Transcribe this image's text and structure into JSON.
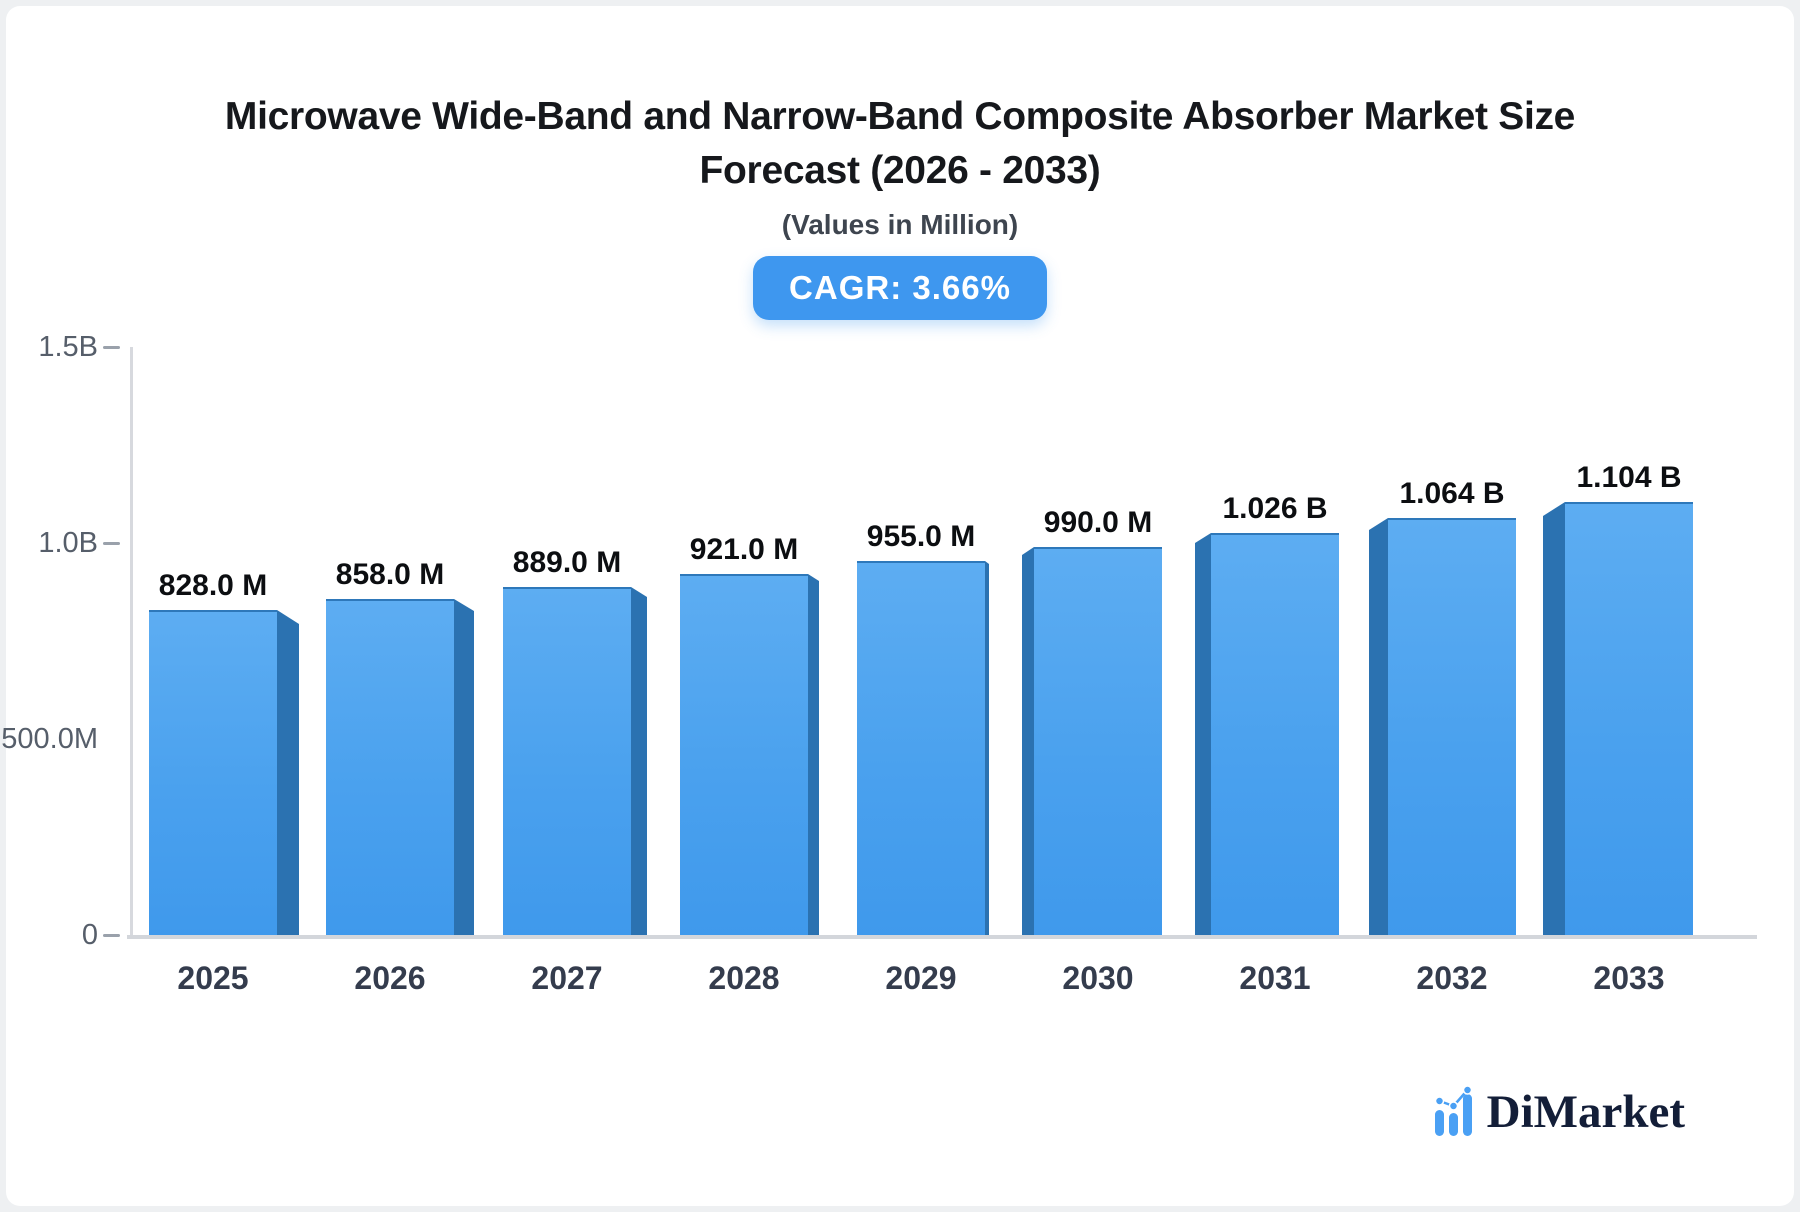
{
  "header": {
    "title_line1": "Microwave Wide-Band and Narrow-Band Composite Absorber Market Size",
    "title_line2": "Forecast (2026 - 2033)",
    "subtitle": "(Values in Million)",
    "cagr_label": "CAGR: 3.66%"
  },
  "chart_data": {
    "type": "bar",
    "title": "Microwave Wide-Band and Narrow-Band Composite Absorber Market Size Forecast (2026 - 2033)",
    "subtitle": "(Values in Million)",
    "cagr_percent": 3.66,
    "categories": [
      "2025",
      "2026",
      "2027",
      "2028",
      "2029",
      "2030",
      "2031",
      "2032",
      "2033"
    ],
    "values_millions": [
      828,
      858,
      889,
      921,
      955,
      990,
      1026,
      1064,
      1104
    ],
    "value_labels": [
      "828.0 M",
      "858.0 M",
      "889.0 M",
      "921.0 M",
      "955.0 M",
      "990.0 M",
      "1.026 B",
      "1.064 B",
      "1.104 B"
    ],
    "xlabel": "",
    "ylabel": "",
    "ylim_millions": [
      0,
      1500
    ],
    "y_tick_labels": [
      "1.5B",
      "1.0B",
      "500.0M",
      "0"
    ],
    "grid": false,
    "legend_position": "none",
    "bar_style": "3d-perspective"
  },
  "colors": {
    "accent_blue": "#3e97ef",
    "bar_face_top": "#5dadf2",
    "bar_face_bottom": "#3f99ec",
    "bar_side": "#2b72b1",
    "axis_gray": "#d5d8dc",
    "tick_label_gray": "#565e6a",
    "value_label_dark": "#0c0e11",
    "year_label_dark": "#343c4d",
    "logo_navy": "#131e38",
    "logo_icon_blue": "#4aa0f4"
  },
  "logo": {
    "text": "DiMarket",
    "icon": "bar-chart-icon"
  }
}
